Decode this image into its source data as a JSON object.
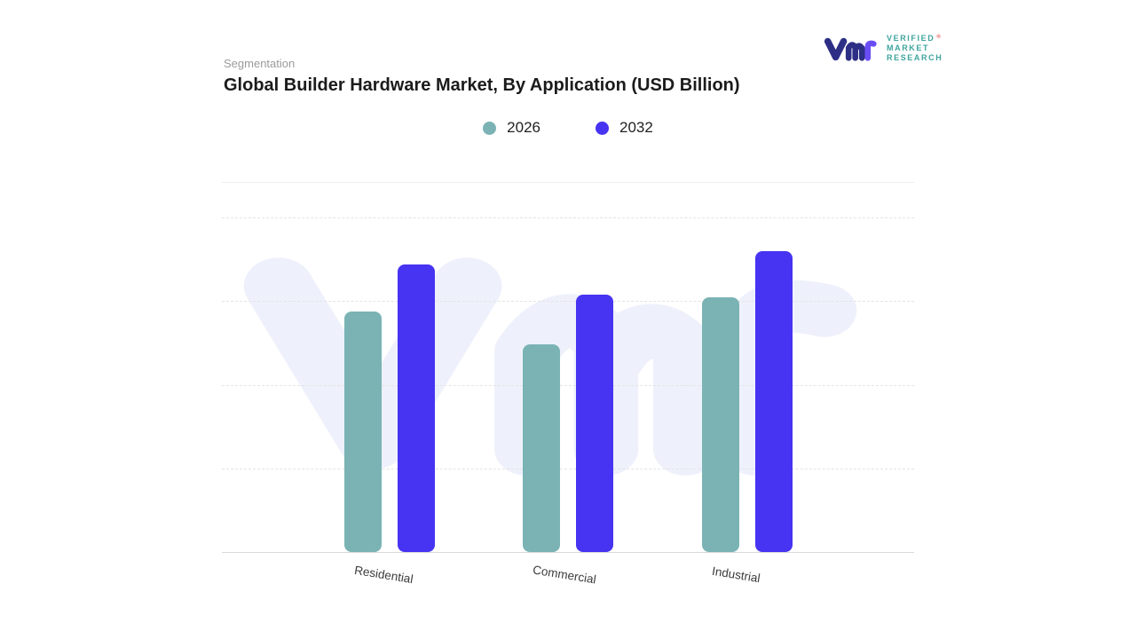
{
  "header": {
    "eyebrow": "Segmentation",
    "title": "Global Builder Hardware Market, By Application (USD Billion)"
  },
  "logo": {
    "lines": [
      "VERIFIED",
      "MARKET",
      "RESEARCH"
    ],
    "registered": "®"
  },
  "chart_data": {
    "type": "bar",
    "title": "Global Builder Hardware Market, By Application (USD Billion)",
    "categories": [
      "Residential",
      "Commercial",
      "Industrial"
    ],
    "series": [
      {
        "name": "2026",
        "color": "#7BB3B4",
        "values": [
          72,
          62,
          76
        ]
      },
      {
        "name": "2032",
        "color": "#4733F2",
        "values": [
          86,
          77,
          90
        ]
      }
    ],
    "ylim": [
      0,
      100
    ],
    "xlabel": "",
    "ylabel": "",
    "grid": "horizontal-dashed",
    "legend_position": "top",
    "colors": {
      "watermark": "#EEF1FB",
      "gridline": "#E4E4E4",
      "axis_line": "#D9D9D9",
      "logo_mark_vm": "#2D2F86",
      "logo_mark_r": "#6B4DF6",
      "logo_text": "#3EA49D"
    }
  }
}
